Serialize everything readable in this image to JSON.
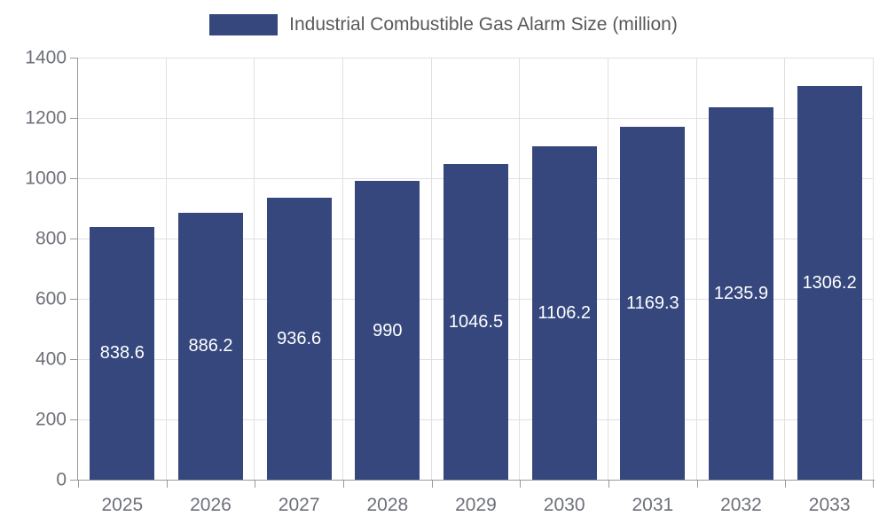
{
  "legend": {
    "label": "Industrial Combustible Gas Alarm Size (million)"
  },
  "chart_data": {
    "type": "bar",
    "title": "Industrial Combustible Gas Alarm Size (million)",
    "series_name": "Industrial Combustible Gas Alarm Size (million)",
    "categories": [
      "2025",
      "2026",
      "2027",
      "2028",
      "2029",
      "2030",
      "2031",
      "2032",
      "2033"
    ],
    "values": [
      838.6,
      886.2,
      936.6,
      990,
      1046.5,
      1106.2,
      1169.3,
      1235.9,
      1306.2
    ],
    "value_labels": [
      "838.6",
      "886.2",
      "936.6",
      "990",
      "1046.5",
      "1106.2",
      "1169.3",
      "1235.9",
      "1306.2"
    ],
    "xlabel": "",
    "ylabel": "",
    "ylim": [
      0,
      1400
    ],
    "yticks": [
      0,
      200,
      400,
      600,
      800,
      1000,
      1200,
      1400
    ],
    "grid": true,
    "legend_position": "top",
    "bar_label_position": "inside-center",
    "colors": {
      "bar": "#35477d",
      "bar_label": "#ffffff",
      "axis_line": "#999999",
      "grid_line": "#e0e0e0",
      "tick_label": "#6e7079",
      "legend_text": "#595959",
      "background": "#ffffff"
    }
  }
}
